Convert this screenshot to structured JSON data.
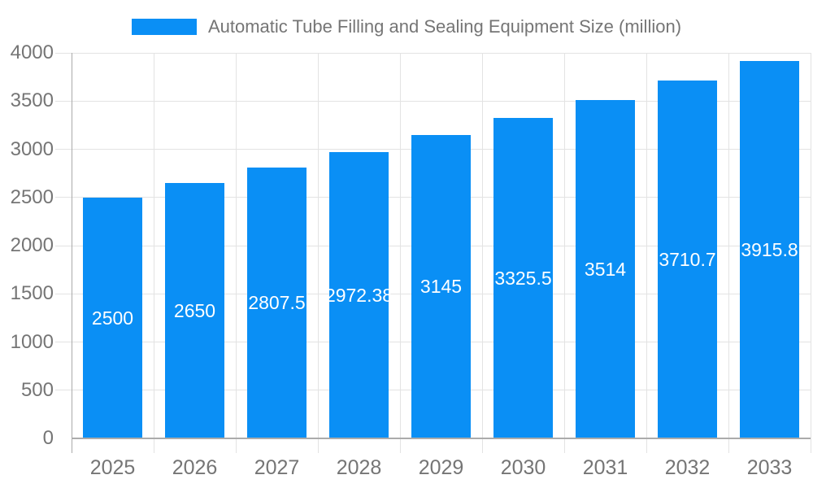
{
  "legend": {
    "title": "Automatic Tube Filling and Sealing Equipment Size (million)"
  },
  "chart_data": {
    "type": "bar",
    "title": "Automatic Tube Filling and Sealing Equipment Size (million)",
    "categories": [
      "2025",
      "2026",
      "2027",
      "2028",
      "2029",
      "2030",
      "2031",
      "2032",
      "2033"
    ],
    "values": [
      2500,
      2650,
      2807.5,
      2972.38,
      3145,
      3325.5,
      3514,
      3710.7,
      3915.8
    ],
    "bar_labels": [
      "2500",
      "2650",
      "2807.5",
      "2972.38",
      "3145",
      "3325.5",
      "3514",
      "3710.7",
      "3915.8"
    ],
    "xlabel": "",
    "ylabel": "",
    "ylim": [
      0,
      4000
    ],
    "yticks": [
      0,
      500,
      1000,
      1500,
      2000,
      2500,
      3000,
      3500,
      4000
    ],
    "legend_position": "top",
    "grid": true,
    "colors": {
      "bar": "#0a8ff5",
      "grid": "#e3e3e3",
      "axis": "#ababab",
      "text": "#757575",
      "bar_label": "#ffffff",
      "background": "#ffffff"
    }
  }
}
